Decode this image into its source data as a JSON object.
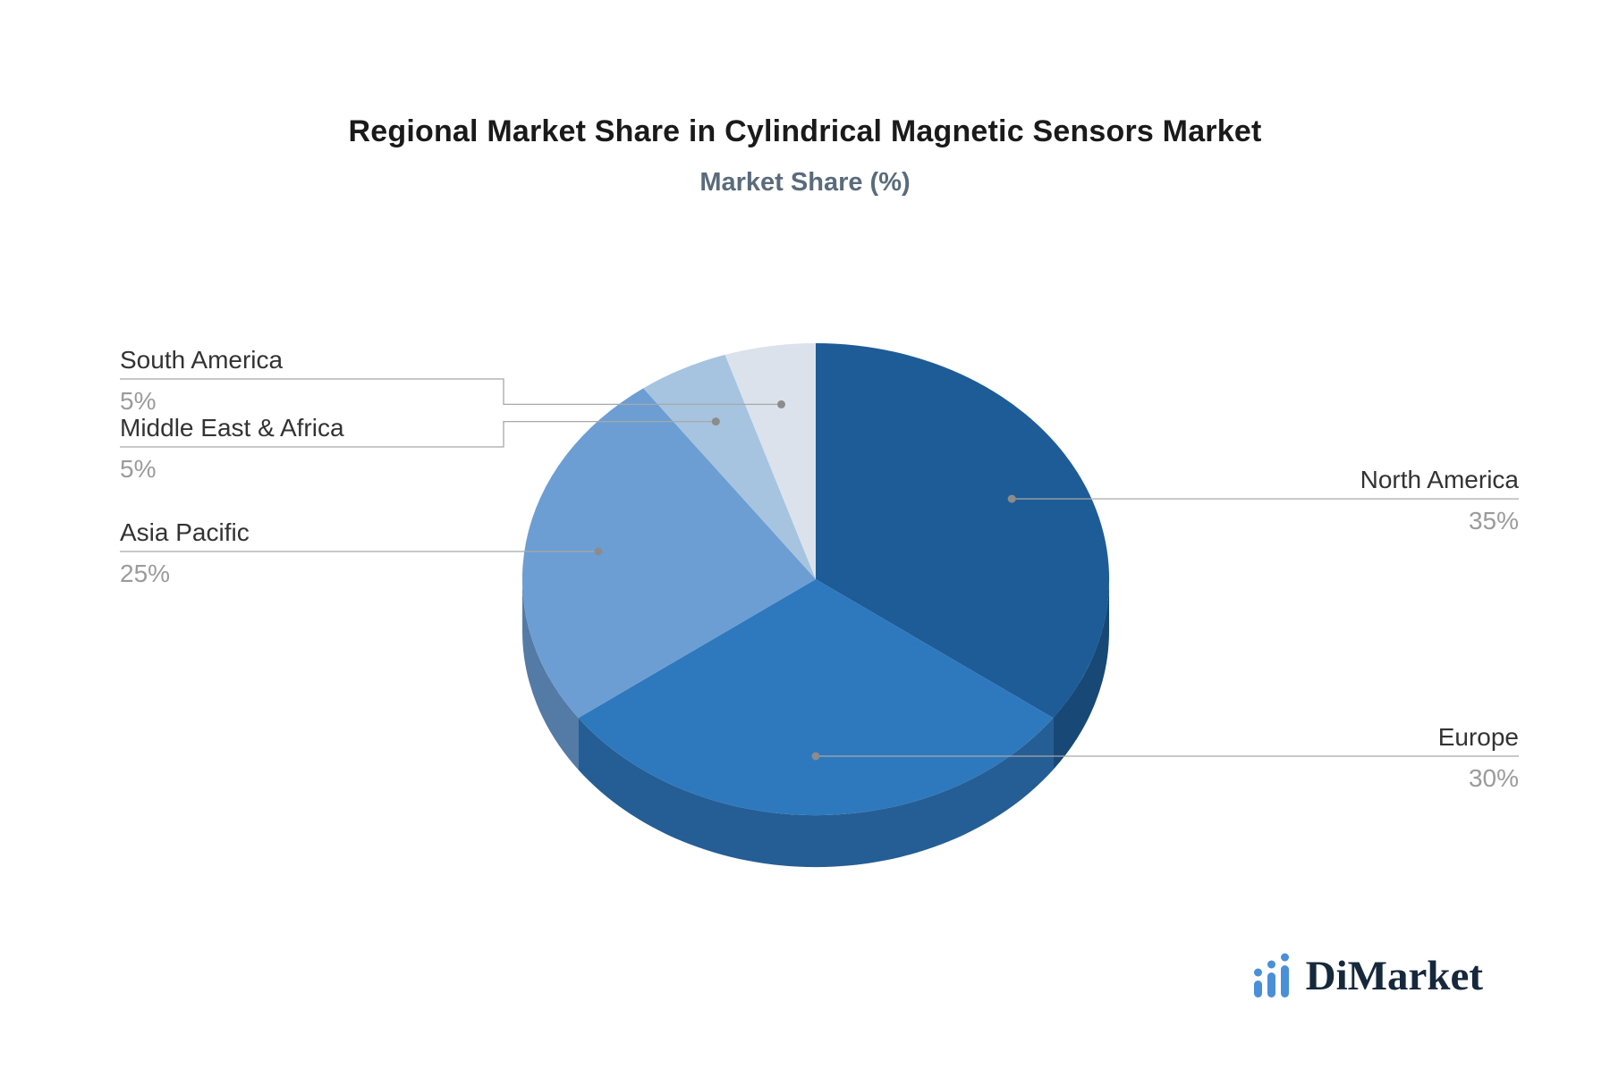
{
  "chart": {
    "title": "Regional Market Share in Cylindrical Magnetic Sensors Market",
    "subtitle": "Market Share (%)"
  },
  "chart_data": {
    "type": "pie",
    "style": "3d",
    "title": "Regional Market Share in Cylindrical Magnetic Sensors Market",
    "subtitle": "Market Share (%)",
    "unit": "%",
    "direction": "clockwise",
    "start_angle_deg": 0,
    "legend": "none",
    "slices": [
      {
        "label": "North America",
        "value": 35,
        "color": "#1E5C97",
        "side": "right"
      },
      {
        "label": "Europe",
        "value": 30,
        "color": "#2E78BE",
        "side": "right"
      },
      {
        "label": "Asia Pacific",
        "value": 25,
        "color": "#6C9ED3",
        "side": "left"
      },
      {
        "label": "Middle East & Africa",
        "value": 5,
        "color": "#A6C3E0",
        "side": "left"
      },
      {
        "label": "South America",
        "value": 5,
        "color": "#DBE2EC",
        "side": "left"
      }
    ]
  },
  "branding": {
    "name": "DiMarket",
    "accent_color": "#4a90d9",
    "text_color": "#16283c"
  }
}
